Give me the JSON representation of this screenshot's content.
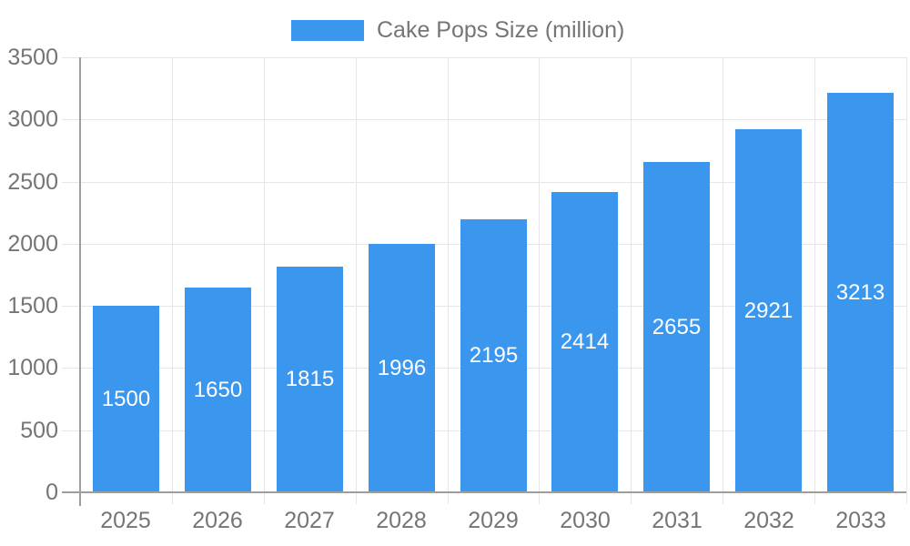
{
  "chart_data": {
    "type": "bar",
    "title": "Cake Pops Size (million)",
    "categories": [
      "2025",
      "2026",
      "2027",
      "2028",
      "2029",
      "2030",
      "2031",
      "2032",
      "2033"
    ],
    "series": [
      {
        "name": "Cake Pops Size (million)",
        "values": [
          1500,
          1650,
          1815,
          1996,
          2195,
          2414,
          2655,
          2921,
          3213
        ]
      }
    ],
    "xlabel": "",
    "ylabel": "",
    "ylim": [
      0,
      3500
    ],
    "yticks": [
      0,
      500,
      1000,
      1500,
      2000,
      2500,
      3000,
      3500
    ],
    "grid": "on",
    "legend_position": "top-center",
    "value_label_position": "inside-center",
    "colors": {
      "bar": "#3b97ee",
      "value_label": "#ffffff",
      "axis_text": "#757575",
      "gridline": "#e6e6e6",
      "axis_line": "#9e9e9e",
      "background": "#ffffff"
    }
  }
}
